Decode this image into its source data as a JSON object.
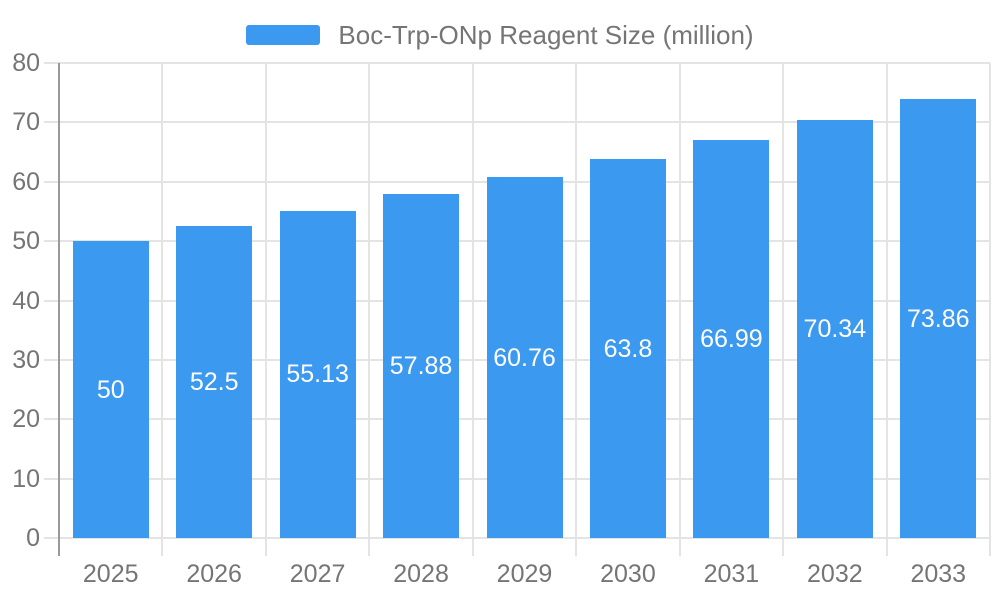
{
  "chart_data": {
    "type": "bar",
    "title": "",
    "legend": [
      "Boc-Trp-ONp Reagent Size (million)"
    ],
    "legend_position": "top",
    "categories": [
      "2025",
      "2026",
      "2027",
      "2028",
      "2029",
      "2030",
      "2031",
      "2032",
      "2033"
    ],
    "series": [
      {
        "name": "Boc-Trp-ONp Reagent Size (million)",
        "values": [
          50,
          52.5,
          55.13,
          57.88,
          60.76,
          63.8,
          66.99,
          70.34,
          73.86
        ]
      }
    ],
    "value_labels": [
      "50",
      "52.5",
      "55.13",
      "57.88",
      "60.76",
      "63.8",
      "66.99",
      "70.34",
      "73.86"
    ],
    "xlabel": "",
    "ylabel": "",
    "ylim": [
      0,
      80
    ],
    "y_ticks": [
      0,
      10,
      20,
      30,
      40,
      50,
      60,
      70,
      80
    ],
    "grid": true,
    "colors": {
      "bar": "#3B99F0",
      "bar_label_text": "#FFFFFF",
      "axis_text": "#757575",
      "grid_line": "#E4E4E4",
      "axis_line": "#999999",
      "background": "#FFFFFF"
    }
  }
}
